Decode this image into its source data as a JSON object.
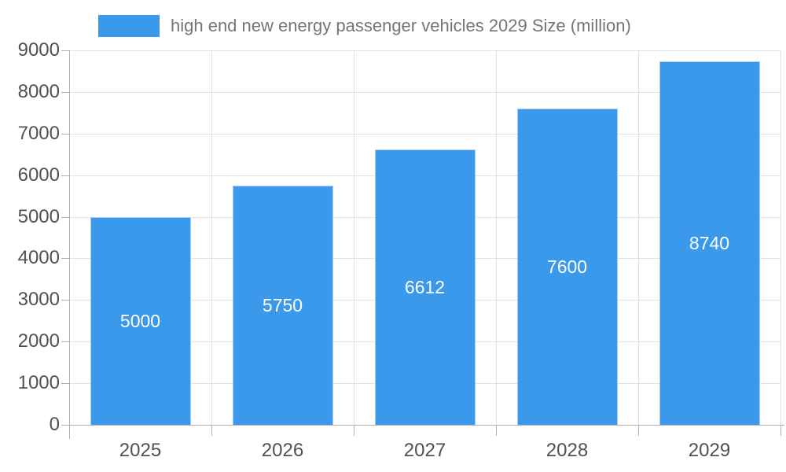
{
  "legend": {
    "label": "high end new energy passenger vehicles 2029 Size (million)"
  },
  "colors": {
    "bar": "#3b99ec",
    "bar_border": "#a5cef2",
    "axis": "#b0b0b0",
    "grid": "#e2e2e2",
    "axis_label": "#515151",
    "legend_text": "#757575",
    "bar_label": "#ffffff",
    "background": "#ffffff"
  },
  "chart_data": {
    "type": "bar",
    "title": "",
    "xlabel": "",
    "ylabel": "",
    "categories": [
      "2025",
      "2026",
      "2027",
      "2028",
      "2029"
    ],
    "series": [
      {
        "name": "high end new energy passenger vehicles 2029 Size (million)",
        "values": [
          5000,
          5750,
          6612,
          7600,
          8740
        ]
      }
    ],
    "data_labels": [
      "5000",
      "5750",
      "6612",
      "7600",
      "8740"
    ],
    "ylim": [
      0,
      9000
    ],
    "yticks": [
      0,
      1000,
      2000,
      3000,
      4000,
      5000,
      6000,
      7000,
      8000,
      9000
    ],
    "grid": true,
    "legend_position": "top",
    "bar_label_position": "inside-center"
  }
}
